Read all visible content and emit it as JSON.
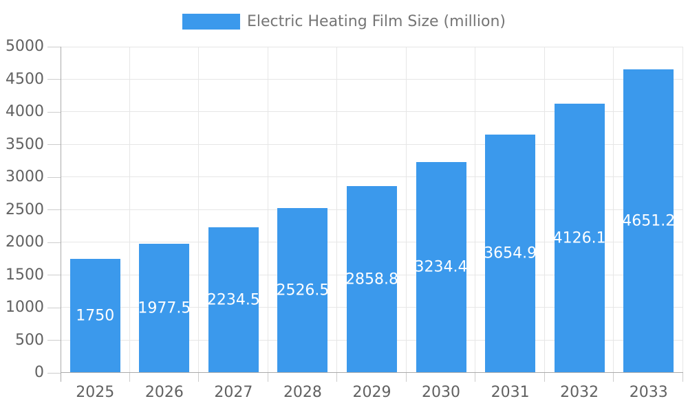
{
  "chart_data": {
    "type": "bar",
    "title": "Electric Heating Film Size (million)",
    "categories": [
      "2025",
      "2026",
      "2027",
      "2028",
      "2029",
      "2030",
      "2031",
      "2032",
      "2033"
    ],
    "values": [
      1750,
      1977.5,
      2234.5,
      2526.5,
      2858.8,
      3234.4,
      3654.9,
      4126.1,
      4651.2
    ],
    "value_labels": [
      "1750",
      "1977.5",
      "2234.5",
      "2526.5",
      "2858.8",
      "3234.4",
      "3654.9",
      "4126.1",
      "4651.2"
    ],
    "xlabel": "",
    "ylabel": "",
    "ylim": [
      0,
      5000
    ],
    "yticks": [
      0,
      500,
      1000,
      1500,
      2000,
      2500,
      3000,
      3500,
      4000,
      4500,
      5000
    ],
    "grid": true,
    "legend_position": "top-center",
    "bar_color": "#3B99EC"
  },
  "colors": {
    "bar": "#3B99EC",
    "grid": "#E6E6E6",
    "axis": "#AAAAAA",
    "tick": "#CCCCCC",
    "axis_label": "#616161",
    "legend_text": "#757575",
    "value_label": "#FFFFFF",
    "background": "#FFFFFF"
  }
}
